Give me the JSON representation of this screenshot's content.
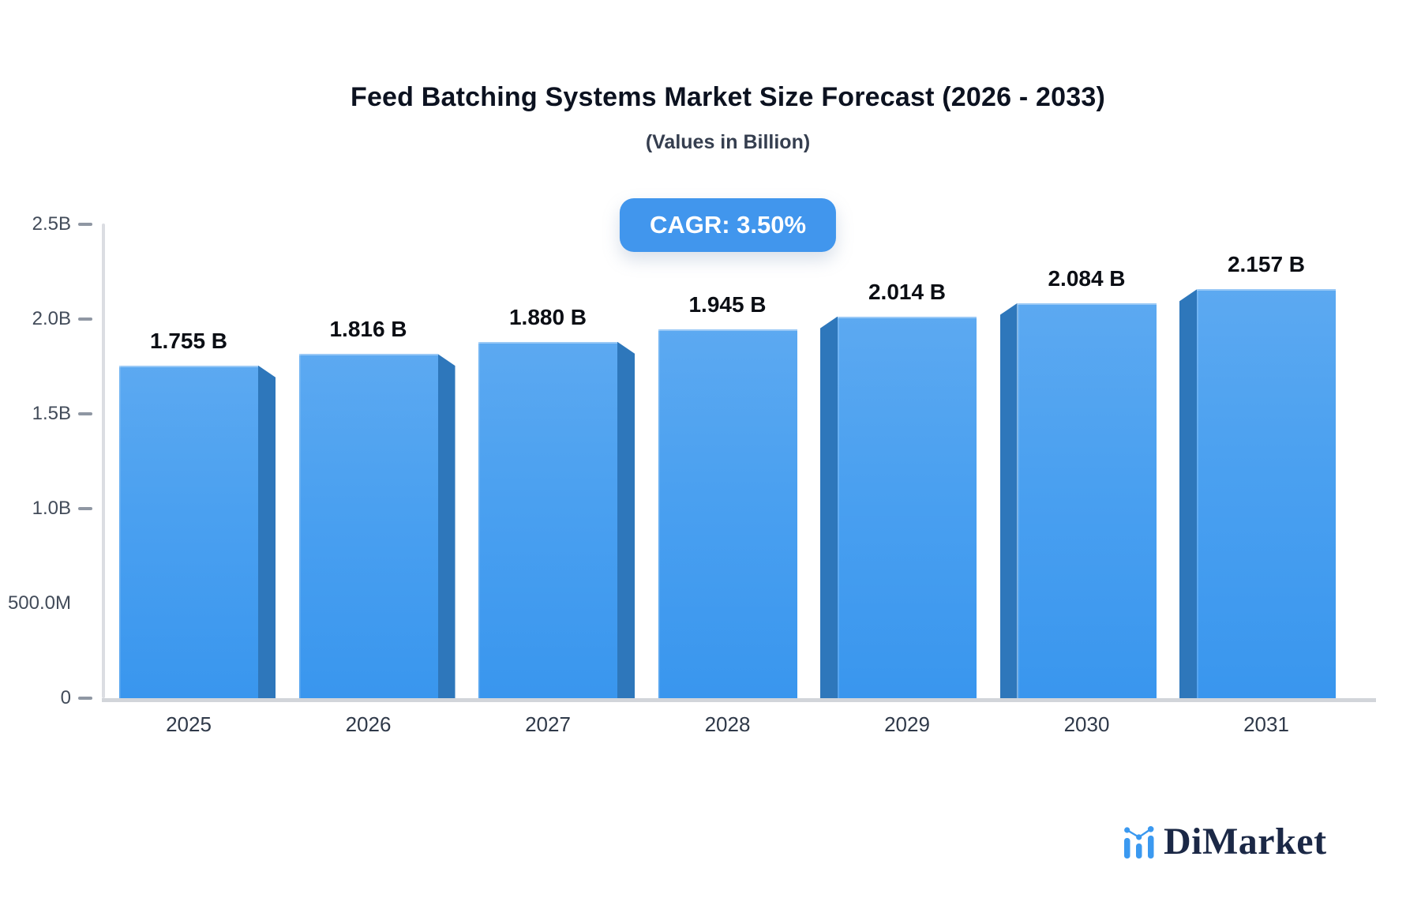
{
  "header": {
    "title": "Feed Batching Systems Market Size Forecast (2026 - 2033)",
    "subtitle": "(Values in Billion)",
    "cagr_label": "CAGR: 3.50%"
  },
  "footer": {
    "brand_name": "DiMarket",
    "brand_icon": "bar-chart-line-logo-icon"
  },
  "colors": {
    "badge_bg": "#4196ed",
    "bar_face_top": "#5ca9f1",
    "bar_face_mid": "#4aa0f0",
    "bar_face_bottom": "#3996ee",
    "bar_side": "#2e77bb",
    "axis_line": "#dbdde2",
    "baseline": "#d2d5da",
    "tick_dash": "#8f97a3",
    "brand_blue": "#3b99f0",
    "brand_navy": "#1b2846"
  },
  "chart_data": {
    "type": "bar",
    "title": "Feed Batching Systems Market Size Forecast (2026 - 2033)",
    "subtitle": "(Values in Billion)",
    "cagr": "3.50%",
    "categories": [
      "2025",
      "2026",
      "2027",
      "2028",
      "2029",
      "2030",
      "2031"
    ],
    "values": [
      1.755,
      1.816,
      1.88,
      1.945,
      2.014,
      2.084,
      2.157
    ],
    "value_labels": [
      "1.755 B",
      "1.816 B",
      "1.880 B",
      "1.945 B",
      "2.014 B",
      "2.084 B",
      "2.157 B"
    ],
    "unit": "Billion USD",
    "ylim": [
      0,
      2.5
    ],
    "yticks": [
      {
        "label": "2.5B",
        "value": 2.5,
        "dash": true
      },
      {
        "label": "2.0B",
        "value": 2.0,
        "dash": true
      },
      {
        "label": "1.5B",
        "value": 1.5,
        "dash": true
      },
      {
        "label": "1.0B",
        "value": 1.0,
        "dash": true
      },
      {
        "label": "500.0M",
        "value": 0.5,
        "dash": false
      },
      {
        "label": "0",
        "value": 0.0,
        "dash": true
      }
    ],
    "grid": false,
    "legend": false,
    "bar_style": "3d-perspective-facing-center"
  }
}
